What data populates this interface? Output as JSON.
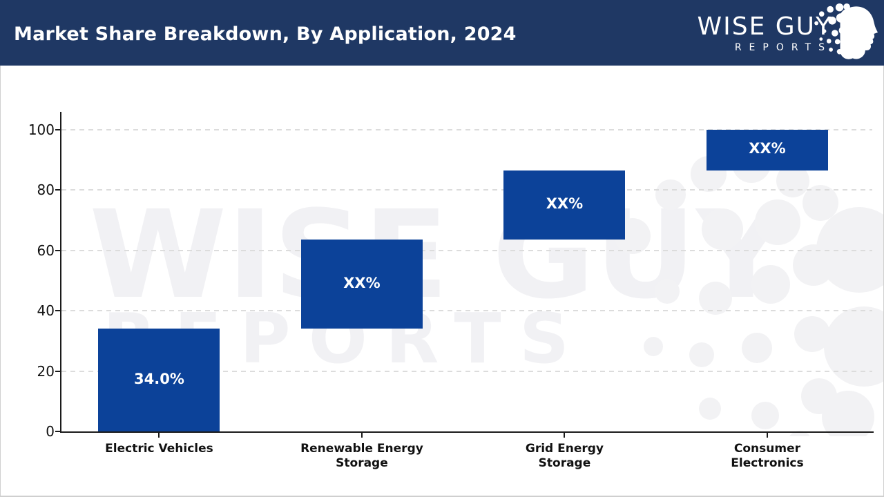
{
  "header": {
    "title": "Market Share Breakdown, By Application, 2024",
    "bg_color": "#1f3864",
    "logo": {
      "line1": "WISE GUY",
      "line2": "REPORTS"
    }
  },
  "watermark": {
    "line1": "WISE GUY",
    "line2": "REPORTS"
  },
  "chart_data": {
    "type": "bar",
    "subtype": "waterfall",
    "title": "Market Share Breakdown, By Application, 2024",
    "categories": [
      "Electric Vehicles",
      "Renewable Energy Storage",
      "Grid Energy Storage",
      "Consumer Electronics"
    ],
    "category_labels": [
      "Electric Vehicles",
      "Renewable Energy\nStorage",
      "Grid Energy\nStorage",
      "Consumer\nElectronics"
    ],
    "segments": [
      {
        "category": "Electric Vehicles",
        "start": 0,
        "end": 34,
        "label": "34.0%"
      },
      {
        "category": "Renewable Energy Storage",
        "start": 34,
        "end": 63.5,
        "label": "XX%"
      },
      {
        "category": "Grid Energy Storage",
        "start": 63.5,
        "end": 86.3,
        "label": "XX%"
      },
      {
        "category": "Consumer Electronics",
        "start": 86.4,
        "end": 100,
        "label": "XX%"
      }
    ],
    "ylim": [
      0,
      100
    ],
    "yticks": [
      0,
      20,
      40,
      60,
      80,
      100
    ],
    "xlabel": "",
    "ylabel": "",
    "grid": "horizontal-dashed",
    "legend": "none",
    "bar_color": "#0c4299",
    "bar_label_color": "#ffffff",
    "axis_color": "#1a1a1a",
    "gridline_color": "#dcdcdc",
    "watermark_color": "#f2f2f4"
  }
}
